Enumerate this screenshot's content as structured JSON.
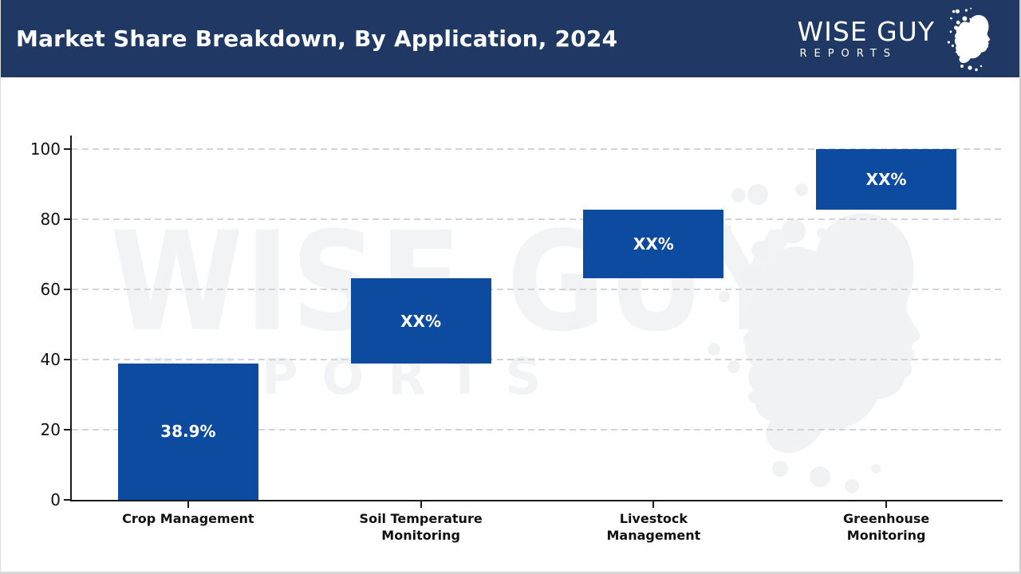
{
  "header": {
    "title": "Market Share Breakdown, By Application, 2024",
    "bg_color": "#1F3864",
    "logo": {
      "wordmark": "WISE GUY",
      "subtitle": "REPORTS"
    }
  },
  "watermark": {
    "line1": "WISE GUY",
    "line2": "REPORTS"
  },
  "chart_data": {
    "type": "bar",
    "subtype": "waterfall-floating-bars",
    "title": "Market Share Breakdown, By Application, 2024",
    "categories": [
      "Crop Management",
      "Soil Temperature\nMonitoring",
      "Livestock\nManagement",
      "Greenhouse\nMonitoring"
    ],
    "segments": [
      {
        "category": "Crop Management",
        "start": 0,
        "end": 38.9,
        "label": "38.9%"
      },
      {
        "category": "Soil Temperature Monitoring",
        "start": 38.9,
        "end": 63.1,
        "label": "XX%"
      },
      {
        "category": "Livestock Management",
        "start": 63.1,
        "end": 82.8,
        "label": "XX%"
      },
      {
        "category": "Greenhouse Monitoring",
        "start": 82.8,
        "end": 100,
        "label": "XX%"
      }
    ],
    "xlabel": "",
    "ylabel": "",
    "ylim": [
      0,
      100
    ],
    "yticks": [
      0,
      20,
      40,
      60,
      80,
      100
    ],
    "grid": "horizontal-dashed",
    "legend": "none",
    "bar_color": "#0C4BA0",
    "bar_label_color": "#FFFFFF",
    "axis_color": "#1a1a1a"
  }
}
